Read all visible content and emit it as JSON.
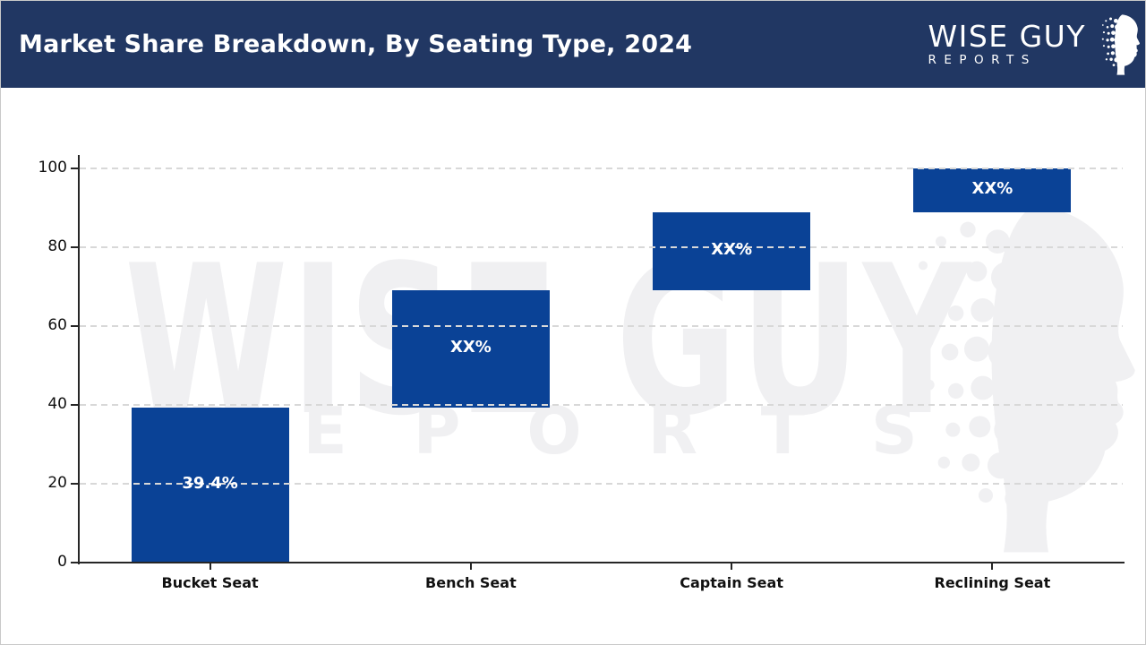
{
  "header": {
    "title": "Market Share Breakdown, By Seating Type, 2024",
    "logo": {
      "line1": "WISE GUY",
      "line2": "REPORTS"
    }
  },
  "watermark": {
    "line1": "WISE GUY",
    "line2": "REPORTS"
  },
  "chart_data": {
    "type": "bar",
    "subtype": "waterfall",
    "title": "Market Share Breakdown, By Seating Type, 2024",
    "categories": [
      "Bucket Seat",
      "Bench Seat",
      "Captain Seat",
      "Reclining Seat"
    ],
    "segments": [
      {
        "category": "Bucket Seat",
        "start": 0,
        "end": 39.4,
        "label": "39.4%"
      },
      {
        "category": "Bench Seat",
        "start": 39.4,
        "end": 69.2,
        "label": "XX%"
      },
      {
        "category": "Captain Seat",
        "start": 69.2,
        "end": 88.9,
        "label": "XX%"
      },
      {
        "category": "Reclining Seat",
        "start": 88.9,
        "end": 100,
        "label": "XX%"
      }
    ],
    "yticks": [
      0,
      20,
      40,
      60,
      80,
      100
    ],
    "ylim": [
      0,
      103
    ],
    "grid": "horizontal-dashed",
    "legend": "none",
    "xlabel": "",
    "ylabel": ""
  },
  "colors": {
    "header_bg": "#213763",
    "bar": "#0A4296",
    "bar_label": "#FFFFFF",
    "grid": "#D8D8D8",
    "axis": "#262626",
    "watermark": "#F0F0F2",
    "page_border": "#C9C9C9"
  }
}
